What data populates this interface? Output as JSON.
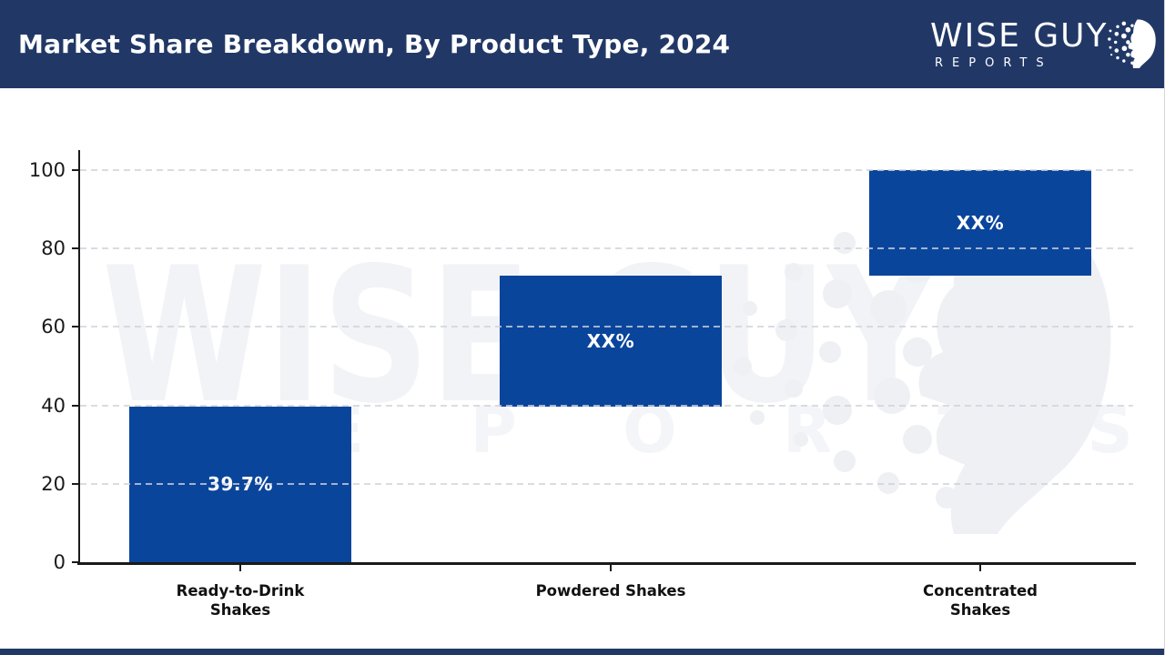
{
  "header": {
    "title": "Market Share Breakdown, By Product Type, 2024",
    "logo_line1": "WISE GUY",
    "logo_line2": "REPORTS"
  },
  "watermark": {
    "line1": "WISE GUY",
    "line2": "R E P O R T S"
  },
  "colors": {
    "header_bg": "#213867",
    "bar_blue": "#0a459c",
    "axis": "#1a1a1a",
    "gridline": "#d9d9dd",
    "bar_label_text": "#ffffff",
    "watermark_gray": "#f2f3f6"
  },
  "chart_data": {
    "type": "bar",
    "subtype": "waterfall",
    "title": "Market Share Breakdown, By Product Type, 2024",
    "categories": [
      "Ready-to-Drink Shakes",
      "Powdered Shakes",
      "Concentrated Shakes"
    ],
    "bars": [
      {
        "category": "Ready-to-Drink Shakes",
        "start": 0,
        "end": 39.7,
        "label": "39.7%"
      },
      {
        "category": "Powdered Shakes",
        "start": 39.7,
        "end": 73,
        "label": "XX%"
      },
      {
        "category": "Concentrated Shakes",
        "start": 73,
        "end": 100,
        "label": "XX%"
      }
    ],
    "category_lines": [
      [
        "Ready-to-Drink",
        "Shakes"
      ],
      [
        "Powdered Shakes"
      ],
      [
        "Concentrated",
        "Shakes"
      ]
    ],
    "yticks": [
      0,
      20,
      40,
      60,
      80,
      100
    ],
    "ylim": [
      0,
      100
    ],
    "xlabel": "",
    "ylabel": "",
    "grid": "horizontal-dashed",
    "legend": "none"
  }
}
